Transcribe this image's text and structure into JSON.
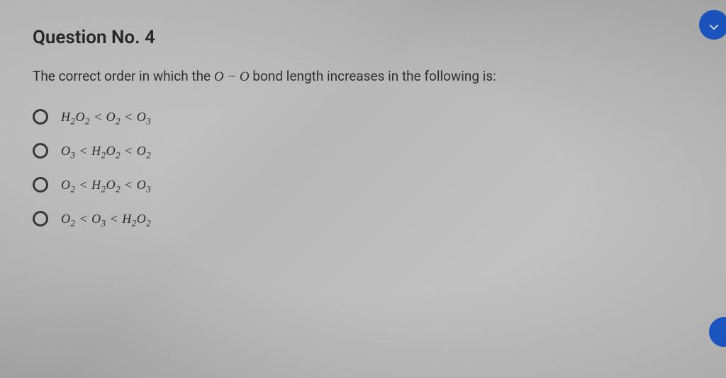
{
  "question": {
    "number_label": "Question No. 4",
    "text_before": "The correct order in which the ",
    "italic": "O − O",
    "text_after": " bond length increases in the following is:"
  },
  "options": {
    "a": {
      "html": "H<sub>2</sub>O<sub>2</sub> &lt; O<sub>2</sub> &lt; O<sub>3</sub>"
    },
    "b": {
      "html": "O<sub>3</sub> &lt; H<sub>2</sub>O<sub>2</sub> &lt; O<sub>2</sub>"
    },
    "c": {
      "html": "O<sub>2</sub> &lt; H<sub>2</sub>O<sub>2</sub> &lt; O<sub>3</sub>"
    },
    "d": {
      "html": "O<sub>2</sub> &lt; O<sub>3</sub> &lt; H<sub>2</sub>O<sub>2</sub>"
    }
  },
  "colors": {
    "badge": "#1d5fd6",
    "text": "#2a2a2a"
  }
}
